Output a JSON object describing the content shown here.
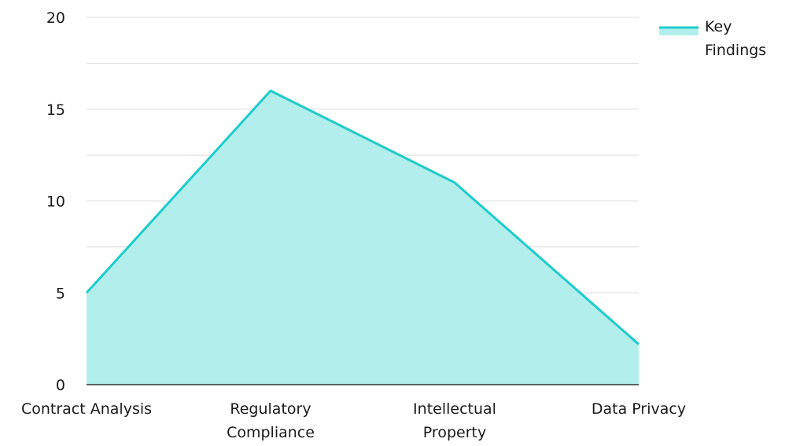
{
  "chart_data": {
    "type": "area",
    "categories": [
      [
        "Contract Analysis"
      ],
      [
        "Regulatory",
        "Compliance"
      ],
      [
        "Intellectual",
        "Property"
      ],
      [
        "Data Privacy"
      ]
    ],
    "series": [
      {
        "name": "Key Findings",
        "legend_lines": [
          "Key",
          "Findings"
        ],
        "values": [
          5,
          16,
          11,
          2.2
        ],
        "line_color": "#1ecbcb",
        "fill_color": "#b2efec"
      }
    ],
    "ylim": [
      0,
      20
    ],
    "yticks": [
      0,
      5,
      10,
      15,
      20
    ],
    "grid": true,
    "grid_color": "#dcdcdc",
    "axis_color": "#333333",
    "legend_position": "top-right",
    "title": "",
    "xlabel": "",
    "ylabel": ""
  }
}
